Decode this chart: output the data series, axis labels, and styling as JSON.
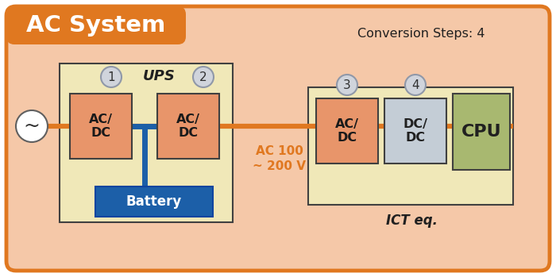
{
  "title": "AC System",
  "title_bg": "#E07820",
  "outer_bg": "#F5C8A8",
  "outer_border": "#E07820",
  "ups_bg": "#F0E8B8",
  "ict_bg": "#F0E8B8",
  "ac_dc_color": "#E8956A",
  "dc_dc_color": "#C4CDD6",
  "cpu_color": "#A8B870",
  "battery_color": "#1C5FA8",
  "battery_text": "#FFFFFF",
  "connector_color": "#E07820",
  "blue_wire": "#1C5FA8",
  "circle_bg": "#D0D4DC",
  "circle_border": "#9098A8",
  "conversion_steps_text": "Conversion Steps: 4",
  "ups_label": "UPS",
  "ict_label": "ICT eq.",
  "ac_label": "AC 100\n~ 200 V",
  "box1_label": "AC/\nDC",
  "box2_label": "AC/\nDC",
  "box3_label": "AC/\nDC",
  "box4_label": "DC/\nDC",
  "cpu_label": "CPU",
  "battery_label": "Battery",
  "fig_w": 7.0,
  "fig_h": 3.49,
  "dpi": 100
}
